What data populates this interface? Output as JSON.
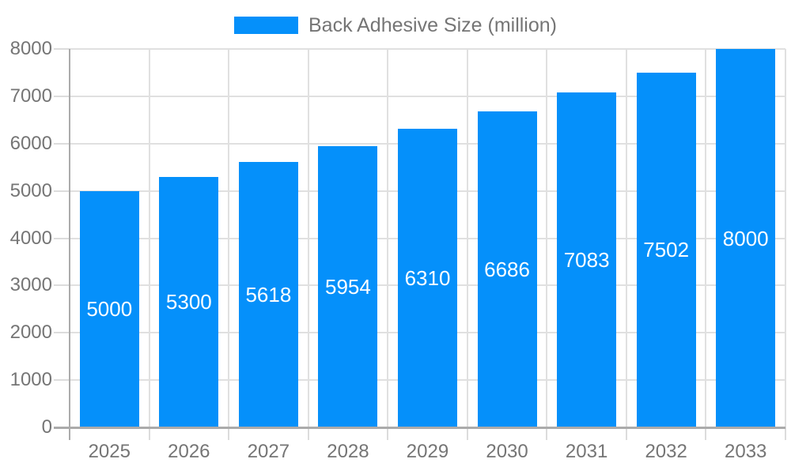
{
  "legend": {
    "label": "Back Adhesive Size (million)"
  },
  "colors": {
    "bar": "#0590FA",
    "axis_text": "#757575",
    "axis_line": "#ABABAB",
    "grid_line": "#E0E0E0",
    "tick_line": "#DCDCDC",
    "value_label": "#FFFFFF",
    "background": "#FFFFFF"
  },
  "chart_data": {
    "type": "bar",
    "title": "Back Adhesive Size (million)",
    "series_name": "Back Adhesive Size (million)",
    "categories": [
      "2025",
      "2026",
      "2027",
      "2028",
      "2029",
      "2030",
      "2031",
      "2032",
      "2033"
    ],
    "values": [
      5000,
      5300,
      5618,
      5954,
      6310,
      6686,
      7083,
      7502,
      8000
    ],
    "xlabel": "",
    "ylabel": "",
    "ylim": [
      0,
      8000
    ],
    "ytick_step": 1000,
    "ytick_labels": [
      "0",
      "1000",
      "2000",
      "3000",
      "4000",
      "5000",
      "6000",
      "7000",
      "8000"
    ],
    "grid": true,
    "legend_position": "top-center",
    "data_labels": "inside-center-white"
  }
}
